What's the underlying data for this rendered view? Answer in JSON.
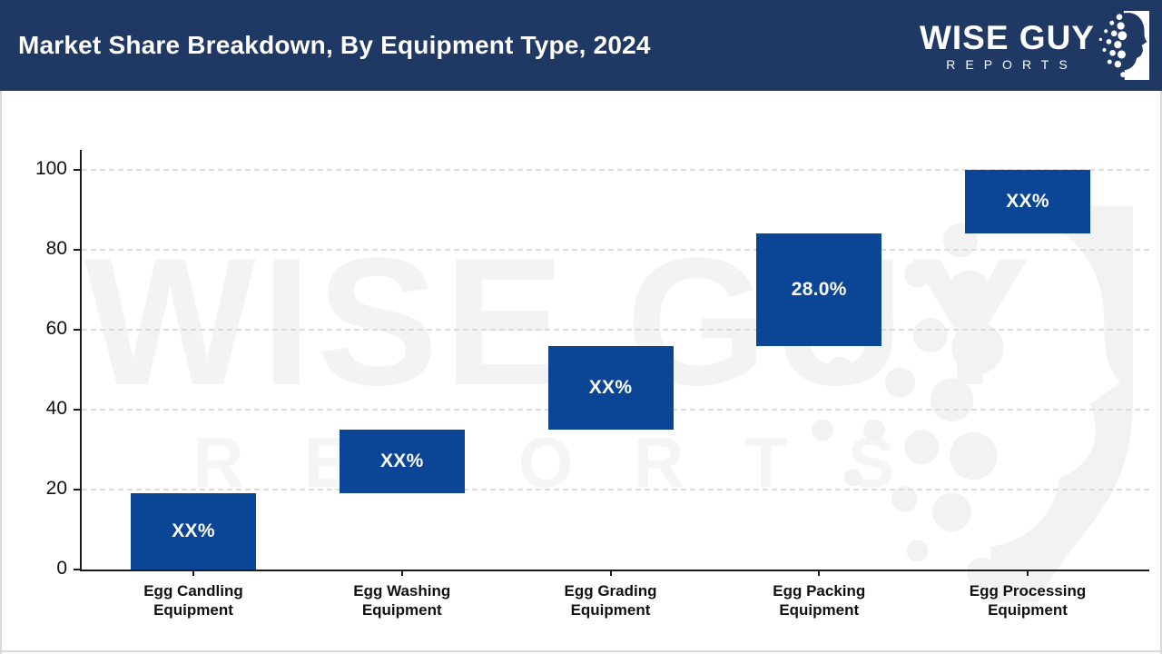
{
  "header": {
    "title": "Market Share Breakdown, By Equipment Type, 2024",
    "logo": {
      "line1": "WISE GUY",
      "line2": "REPORTS"
    }
  },
  "watermark": {
    "line1": "WISE GUY",
    "line2": "REPORTS"
  },
  "chart_data": {
    "type": "bar",
    "subtype": "waterfall",
    "title": "Market Share Breakdown, By Equipment Type, 2024",
    "categories": [
      "Egg Candling Equipment",
      "Egg Washing Equipment",
      "Egg Grading Equipment",
      "Egg Packing Equipment",
      "Egg Processing Equipment"
    ],
    "segments": [
      {
        "start": 0,
        "end": 19,
        "value": 19,
        "label": "XX%"
      },
      {
        "start": 19,
        "end": 35,
        "value": 16,
        "label": "XX%"
      },
      {
        "start": 35,
        "end": 56,
        "value": 21,
        "label": "XX%"
      },
      {
        "start": 56,
        "end": 84,
        "value": 28,
        "label": "28.0%"
      },
      {
        "start": 84,
        "end": 100,
        "value": 16,
        "label": "XX%"
      }
    ],
    "xlabel": "",
    "ylabel": "",
    "ylim": [
      0,
      100
    ],
    "yticks": [
      0,
      20,
      40,
      60,
      80,
      100
    ],
    "grid": "horizontal-dashed",
    "legend": "none",
    "bar_color": "#0b4596",
    "bar_label_color": "#ffffff"
  },
  "colors": {
    "header_bg": "#1f3864",
    "bar": "#0b4596",
    "watermark": "#f3f3f3",
    "gridline": "#dcdcdc",
    "axis": "#1a1a1a",
    "border": "#d9d9d9"
  }
}
